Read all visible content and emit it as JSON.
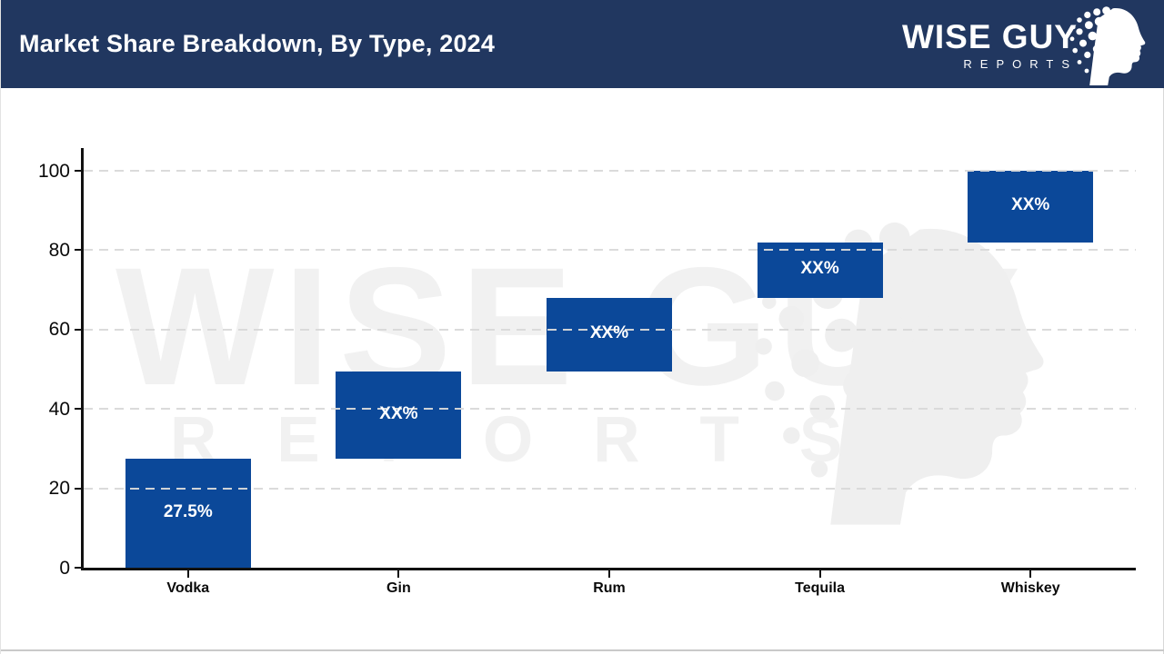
{
  "header": {
    "title": "Market Share Breakdown, By Type, 2024",
    "logo": {
      "line1": "WISE GUY",
      "line2": "REPORTS"
    }
  },
  "watermark": {
    "line1": "WISE GUY",
    "line2": "REPORTS"
  },
  "chart_data": {
    "type": "bar",
    "subtype": "waterfall-floating-bars",
    "title": "Market Share Breakdown, By Type, 2024",
    "categories": [
      "Vodka",
      "Gin",
      "Rum",
      "Tequila",
      "Whiskey"
    ],
    "segments": [
      {
        "category": "Vodka",
        "start": 0,
        "end": 27.5,
        "label": "27.5%"
      },
      {
        "category": "Gin",
        "start": 27.5,
        "end": 49.5,
        "label": "XX%"
      },
      {
        "category": "Rum",
        "start": 49.5,
        "end": 68,
        "label": "XX%"
      },
      {
        "category": "Tequila",
        "start": 68,
        "end": 82,
        "label": "XX%"
      },
      {
        "category": "Whiskey",
        "start": 82,
        "end": 100,
        "label": "XX%"
      }
    ],
    "yticks": [
      0,
      20,
      40,
      60,
      80,
      100
    ],
    "ylim": [
      0,
      105
    ],
    "xlabel": "",
    "ylabel": "",
    "grid": "horizontal dashed lines at 20/40/60/80/100, drawn over bars",
    "legend": "none"
  },
  "colors": {
    "header_bg": "#213760",
    "bar": "#0b4899",
    "grid": "#d9d9d9",
    "axis": "#111111",
    "watermark": "#f1f1f1",
    "title_text": "#ffffff",
    "bar_label_text": "#ffffff"
  }
}
